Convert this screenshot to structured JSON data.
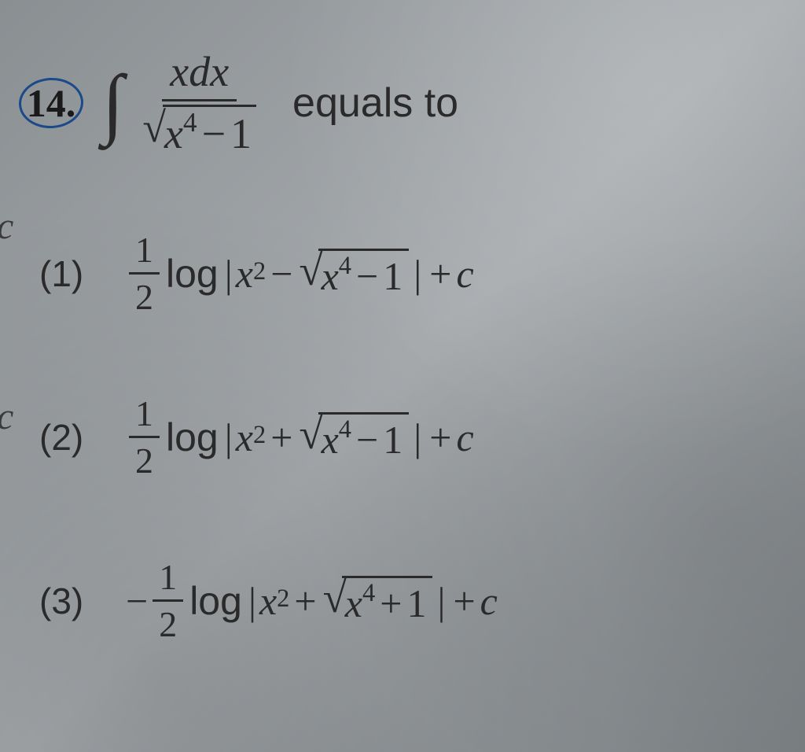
{
  "question": {
    "number": "14.",
    "integral_numerator_var": "x",
    "integral_numerator_diff": "dx",
    "integral_denom_inner_var": "x",
    "integral_denom_inner_exp": "4",
    "integral_denom_inner_const": "1",
    "equals_text": "equals to"
  },
  "left_edge": {
    "label_c_1": "c",
    "label_c_2": "c"
  },
  "options": [
    {
      "label": "(1)",
      "coef_num": "1",
      "coef_den": "2",
      "negative": false,
      "log_text": "log",
      "x_var": "x",
      "x_exp": "2",
      "inner_sign": "−",
      "sqrt_var": "x",
      "sqrt_exp": "4",
      "sqrt_sign": "−",
      "sqrt_const": "1",
      "plus_c": "+",
      "constant": "c"
    },
    {
      "label": "(2)",
      "coef_num": "1",
      "coef_den": "2",
      "negative": false,
      "log_text": "log",
      "x_var": "x",
      "x_exp": "2",
      "inner_sign": "+",
      "sqrt_var": "x",
      "sqrt_exp": "4",
      "sqrt_sign": "−",
      "sqrt_const": "1",
      "plus_c": "+",
      "constant": "c"
    },
    {
      "label": "(3)",
      "coef_num": "1",
      "coef_den": "2",
      "negative": true,
      "log_text": "log",
      "x_var": "x",
      "x_exp": "2",
      "inner_sign": "+",
      "sqrt_var": "x",
      "sqrt_exp": "4",
      "sqrt_sign": "+",
      "sqrt_const": "1",
      "plus_c": "+",
      "constant": "c"
    }
  ],
  "colors": {
    "background_avg": "#8f9396",
    "text_color": "#2a2a2a",
    "circle_color": "#1a4a8a"
  },
  "typography": {
    "question_number_fontsize": 50,
    "main_formula_fontsize": 54,
    "equals_text_fontsize": 52,
    "option_fontsize": 50,
    "option_label_fontsize": 46
  }
}
